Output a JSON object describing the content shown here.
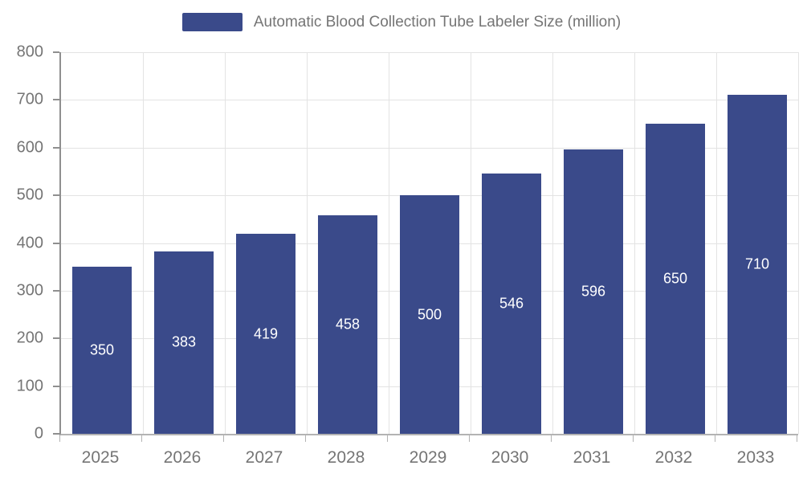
{
  "legend": {
    "label": "Automatic Blood Collection Tube Labeler Size (million)"
  },
  "colors": {
    "bar": "#3a4a8a",
    "value_label": "#ffffff",
    "axis_text": "#757575",
    "gridline": "#e3e3e3",
    "axis_line_left": "#8f8f8f",
    "axis_line_bottom": "#b3b3b3"
  },
  "chart_data": {
    "type": "bar",
    "title": "Automatic Blood Collection Tube Labeler Size (million)",
    "categories": [
      "2025",
      "2026",
      "2027",
      "2028",
      "2029",
      "2030",
      "2031",
      "2032",
      "2033"
    ],
    "values": [
      350,
      383,
      419,
      458,
      500,
      546,
      596,
      650,
      710
    ],
    "series": [
      {
        "name": "Automatic Blood Collection Tube Labeler Size (million)",
        "values": [
          350,
          383,
          419,
          458,
          500,
          546,
          596,
          650,
          710
        ]
      }
    ],
    "xlabel": "",
    "ylabel": "",
    "ylim": [
      0,
      800
    ],
    "yticks": [
      0,
      100,
      200,
      300,
      400,
      500,
      600,
      700,
      800
    ],
    "grid": true,
    "legend_position": "top",
    "value_labels": "inside-center"
  }
}
